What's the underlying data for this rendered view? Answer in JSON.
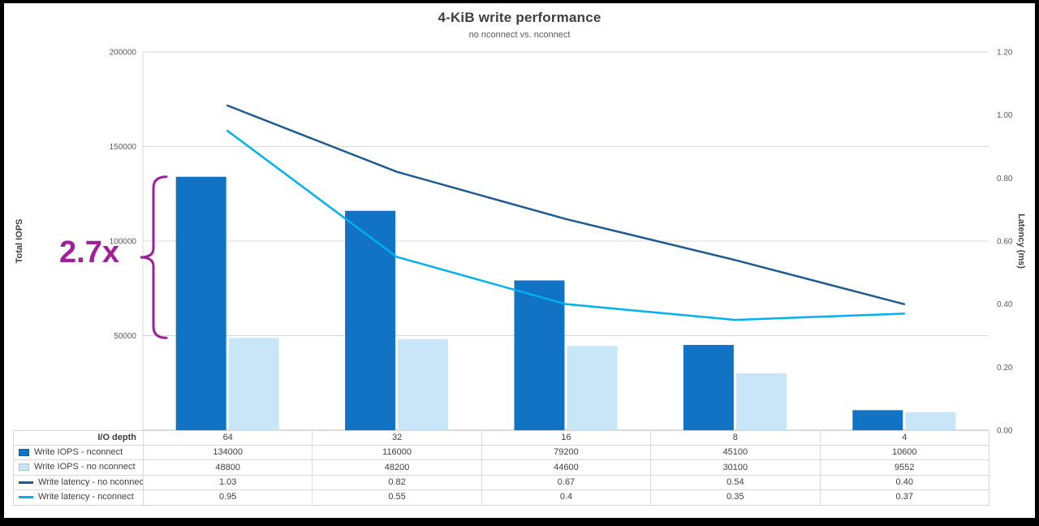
{
  "header": {
    "title": "4-KiB write performance",
    "subtitle": "no nconnect vs. nconnect"
  },
  "axes": {
    "left_title": "Total IOPS",
    "right_title": "Latency (ms)",
    "left_ticks": [
      "200000",
      "150000",
      "100000",
      "50000"
    ],
    "right_ticks": [
      "1.20",
      "1.00",
      "0.80",
      "0.60",
      "0.40",
      "0.20",
      "0.00"
    ]
  },
  "annotation": {
    "text": "2.7x",
    "color": "#a0209c"
  },
  "chart_data": {
    "type": "bar+line",
    "title": "4-KiB write performance",
    "subtitle": "no nconnect vs. nconnect",
    "xlabel": "I/O depth",
    "ylabel_left": "Total IOPS",
    "ylabel_right": "Latency (ms)",
    "ylim_left": [
      0,
      200000
    ],
    "ylim_right": [
      0,
      1.2
    ],
    "grid": true,
    "legend_position": "data-table",
    "categories": [
      "64",
      "32",
      "16",
      "8",
      "4"
    ],
    "series": [
      {
        "name": "Write IOPS - nconnect",
        "type": "bar",
        "axis": "left",
        "color": "#1273c4",
        "values": [
          134000,
          116000,
          79200,
          45100,
          10600
        ]
      },
      {
        "name": "Write IOPS - no nconnect",
        "type": "bar",
        "axis": "left",
        "color": "#c9e6f8",
        "values": [
          48800,
          48200,
          44600,
          30100,
          9552
        ]
      },
      {
        "name": "Write latency - no nconnect",
        "type": "line",
        "axis": "right",
        "color": "#1f5b8e",
        "values": [
          1.03,
          0.82,
          0.67,
          0.54,
          0.4
        ]
      },
      {
        "name": "Write latency - nconnect",
        "type": "line",
        "axis": "right",
        "color": "#00b0f0",
        "values": [
          0.95,
          0.55,
          0.4,
          0.35,
          0.37
        ]
      }
    ]
  },
  "table": {
    "header_row": {
      "label": "I/O depth",
      "values": [
        "64",
        "32",
        "16",
        "8",
        "4"
      ]
    },
    "rows": [
      {
        "label": "Write IOPS - nconnect",
        "values": [
          "134000",
          "116000",
          "79200",
          "45100",
          "10600"
        ]
      },
      {
        "label": "Write IOPS - no nconnect",
        "values": [
          "48800",
          "48200",
          "44600",
          "30100",
          "9552"
        ]
      },
      {
        "label": "Write latency - no nconnect",
        "values": [
          "1.03",
          "0.82",
          "0.67",
          "0.54",
          "0.40"
        ]
      },
      {
        "label": "Write latency - nconnect",
        "values": [
          "0.95",
          "0.55",
          "0.4",
          "0.35",
          "0.37"
        ]
      }
    ]
  },
  "colors": {
    "grid": "#d9d9d9",
    "axis_line": "#bfbfbf",
    "tick_text": "#595959",
    "axis_title_text": "#404040",
    "frame": "#000000"
  }
}
